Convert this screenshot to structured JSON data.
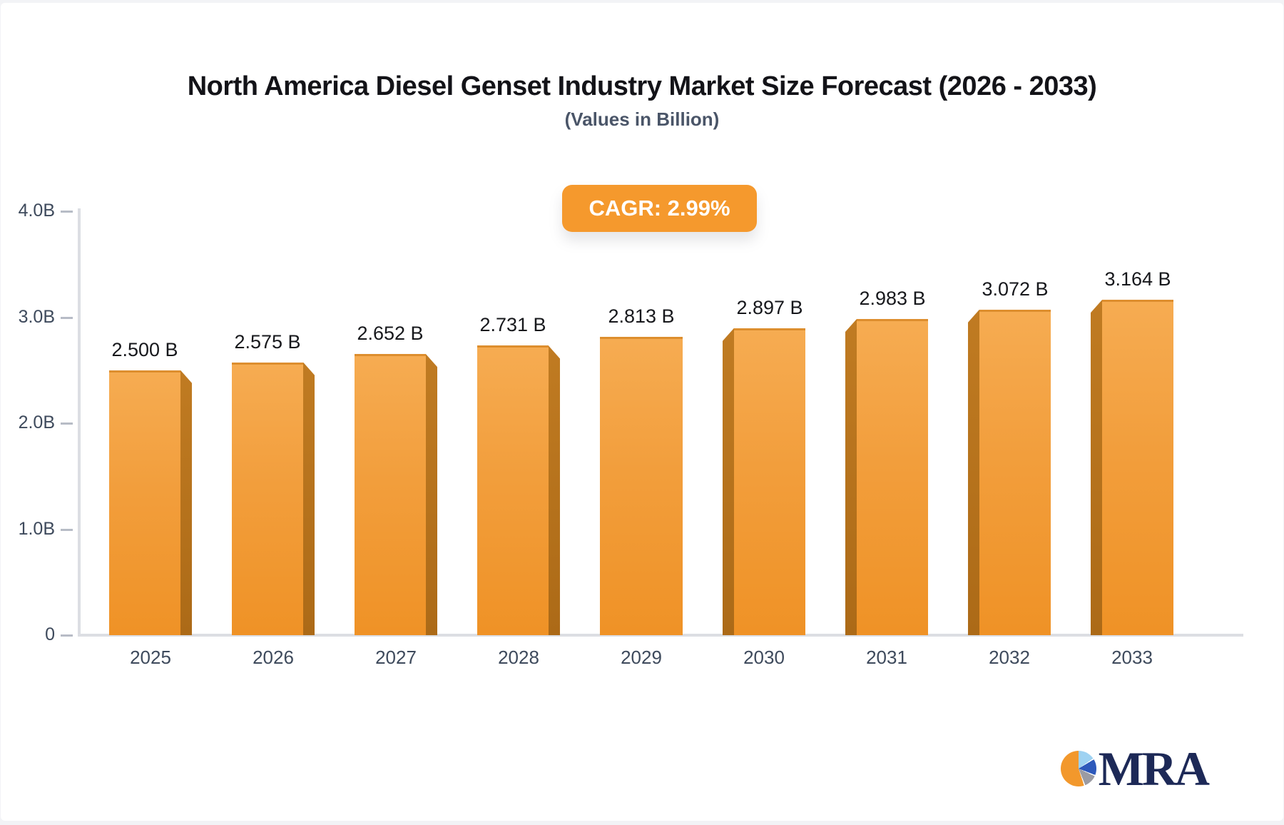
{
  "page": {
    "background": "#f2f3f6",
    "card_background": "#ffffff"
  },
  "header": {
    "title": "North America Diesel Genset Industry Market Size Forecast (2026 - 2033)",
    "subtitle": "(Values in Billion)"
  },
  "badge": {
    "label": "CAGR: 2.99%",
    "background": "#f5992d",
    "text_color": "#ffffff"
  },
  "chart_data": {
    "type": "bar",
    "title": "North America Diesel Genset Industry Market Size Forecast (2026 - 2033)",
    "subtitle": "(Values in Billion)",
    "categories": [
      "2025",
      "2026",
      "2027",
      "2028",
      "2029",
      "2030",
      "2031",
      "2032",
      "2033"
    ],
    "values": [
      2.5,
      2.575,
      2.652,
      2.731,
      2.813,
      2.897,
      2.983,
      3.072,
      3.164
    ],
    "value_labels": [
      "2.500 B",
      "2.575 B",
      "2.652 B",
      "2.731 B",
      "2.813 B",
      "2.897 B",
      "2.983 B",
      "3.072 B",
      "3.164 B"
    ],
    "xlabel": "",
    "ylabel": "",
    "ylim": [
      0,
      4
    ],
    "ytick_labels": [
      "0",
      "1.0B",
      "2.0B",
      "3.0B",
      "4.0B"
    ],
    "grid": false,
    "legend": false,
    "annotations": [
      "CAGR: 2.99%"
    ],
    "bar_face_color": "#f19a33",
    "bar_side_color": "#b57120",
    "axis_color": "#dcdee3",
    "tick_label_color": "#3e4a5c",
    "value_label_color": "#17181c",
    "style": "3d-perspective-center-vanishing-point"
  },
  "logo": {
    "text": "MRA",
    "text_color": "#1d2957",
    "pie_colors": [
      "#f2982c",
      "#9ed2f2",
      "#2e59bb",
      "#9b9ba3"
    ]
  }
}
